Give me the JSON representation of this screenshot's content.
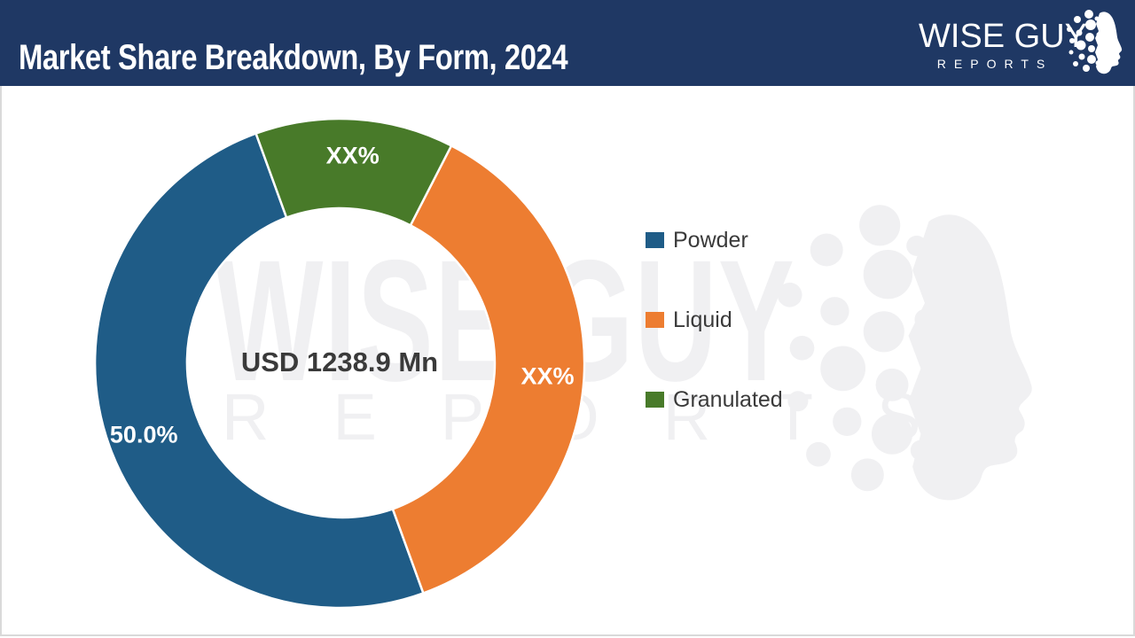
{
  "header": {
    "title": "Market Share Breakdown, By Form, 2024",
    "logo": {
      "line1": "WISE GUY",
      "line2": "REPORTS"
    }
  },
  "chart_data": {
    "type": "pie",
    "subtype": "donut",
    "title": "Market Share Breakdown, By Form, 2024",
    "center_label": "USD 1238.9 Mn",
    "start_angle_deg": 110,
    "direction": "counterclockwise",
    "inner_radius_ratio": 0.634,
    "legend_position": "right",
    "segments": [
      {
        "label": "Powder",
        "value_pct": 50.0,
        "display_label": "50.0%",
        "color": "#1F5C87"
      },
      {
        "label": "Liquid",
        "value_pct": 36.9,
        "display_label": "XX%",
        "color": "#ED7D31"
      },
      {
        "label": "Granulated",
        "value_pct": 13.1,
        "display_label": "XX%",
        "color": "#487A29"
      }
    ]
  },
  "watermark": {
    "line1": "WISE GUY",
    "line2": "REPORTS"
  },
  "colors": {
    "header_bg": "#1F3864",
    "text_dark": "#3A3A3A",
    "watermark": "#F0F0F2",
    "border": "#D9D9D9"
  }
}
